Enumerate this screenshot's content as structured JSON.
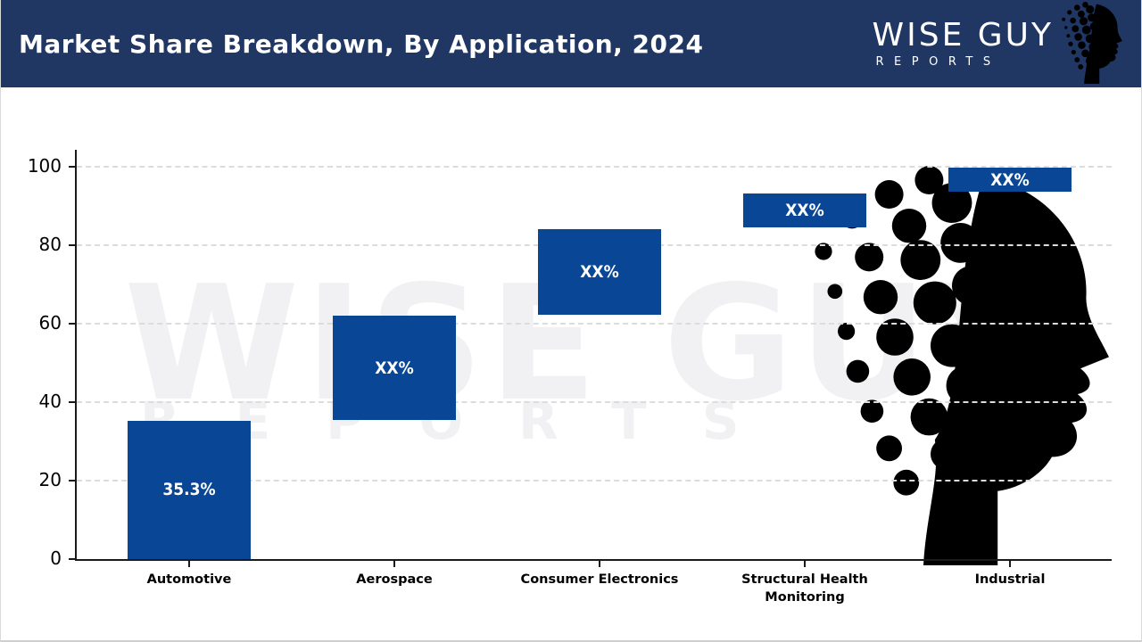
{
  "header": {
    "title": "Market Share Breakdown, By Application, 2024",
    "bg_color": "#203764",
    "logo": {
      "wordmark": "WISE GUY",
      "subtext": "REPORTS"
    }
  },
  "watermark": {
    "wordmark": "WISE GUY",
    "subtext": "REPORTS"
  },
  "chart_data": {
    "type": "bar",
    "subtype": "waterfall",
    "title": "Market Share Breakdown, By Application, 2024",
    "xlabel": "",
    "ylabel": "",
    "ylim": [
      0,
      100
    ],
    "yticks": [
      0,
      20,
      40,
      60,
      80,
      100
    ],
    "grid": "horizontal-dashed",
    "legend": "none",
    "bar_color": "#0a4696",
    "label_color": "#ffffff",
    "categories": [
      "Automotive",
      "Aerospace",
      "Consumer Electronics",
      "Structural Health Monitoring",
      "Industrial"
    ],
    "bars": [
      {
        "category": "Automotive",
        "start": 0,
        "end": 35.3,
        "label": "35.3%"
      },
      {
        "category": "Aerospace",
        "start": 35.4,
        "end": 62.0,
        "label": "XX%"
      },
      {
        "category": "Consumer Electronics",
        "start": 62.3,
        "end": 84.2,
        "label": "XX%"
      },
      {
        "category": "Structural Health Monitoring",
        "start": 84.5,
        "end": 93.2,
        "label": "XX%"
      },
      {
        "category": "Industrial",
        "start": 93.6,
        "end": 99.8,
        "label": "XX%"
      }
    ]
  }
}
